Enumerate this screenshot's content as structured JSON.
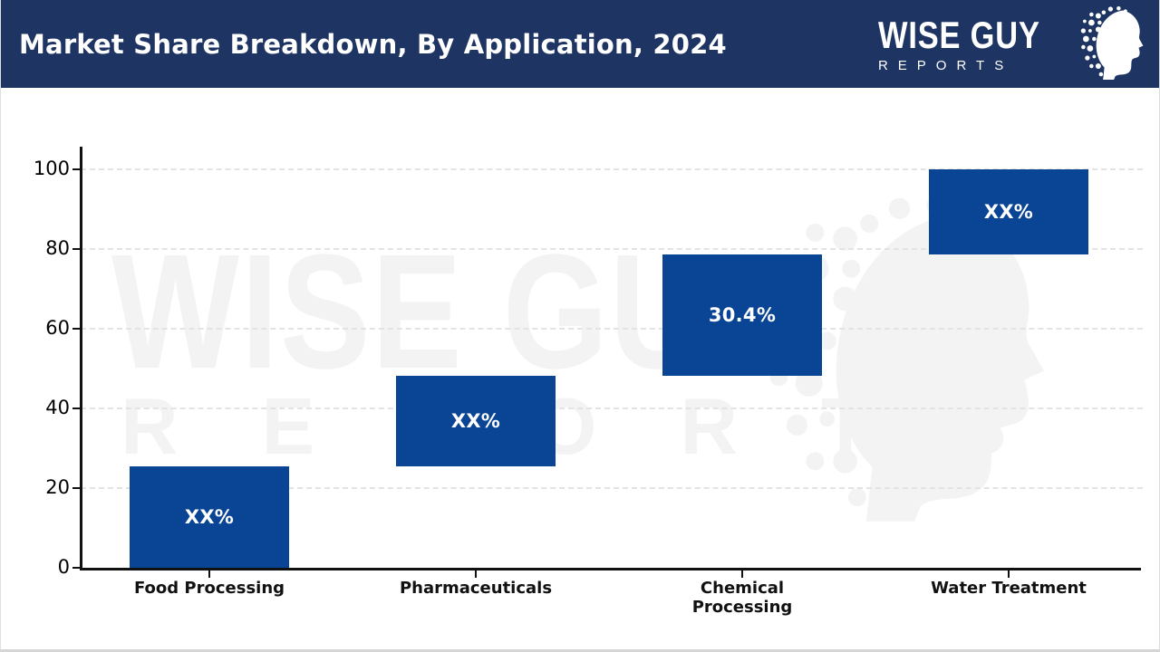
{
  "page": {
    "background": "#ffffff",
    "border_color": "#d5d5d5"
  },
  "header": {
    "title": "Market Share Breakdown, By Application, 2024",
    "background": "#1e3462",
    "text_color": "#ffffff"
  },
  "brand": {
    "line1": "WISE GUY",
    "line2": "REPORTS"
  },
  "chart_data": {
    "type": "bar",
    "subtype": "waterfall",
    "title": "Market Share Breakdown, By Application, 2024",
    "categories": [
      "Food Processing",
      "Pharmaceuticals",
      "Chemical Processing",
      "Water Treatment"
    ],
    "tick_labels": [
      "Food Processing",
      "Pharmaceuticals",
      "Chemical\nProcessing",
      "Water Treatment"
    ],
    "segments": [
      {
        "category": "Food Processing",
        "start": 0,
        "end": 25.4,
        "value": 25.4,
        "label": "XX%"
      },
      {
        "category": "Pharmaceuticals",
        "start": 25.4,
        "end": 48.2,
        "value": 22.8,
        "label": "XX%"
      },
      {
        "category": "Chemical Processing",
        "start": 48.2,
        "end": 78.6,
        "value": 30.4,
        "label": "30.4%"
      },
      {
        "category": "Water Treatment",
        "start": 78.6,
        "end": 100,
        "value": 21.4,
        "label": "XX%"
      }
    ],
    "ylim": [
      0,
      100
    ],
    "yticks": [
      0,
      20,
      40,
      60,
      80,
      100
    ],
    "xlabel": "",
    "ylabel": "",
    "grid": "horizontal-dashed",
    "legend": "none",
    "bar_color": "#0a4595",
    "bar_label_color": "#ffffff",
    "axis_color": "#111111",
    "gridline_color": "#e3e3e3"
  }
}
